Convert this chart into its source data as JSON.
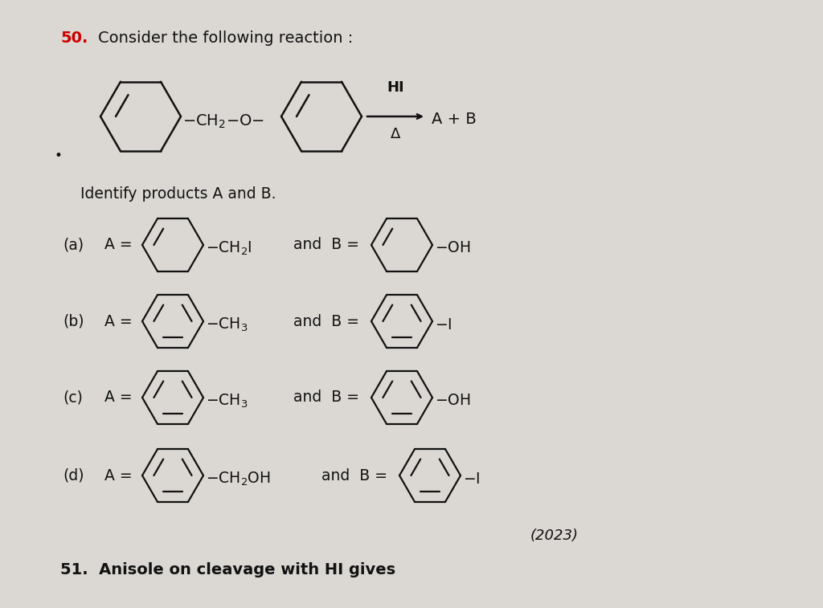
{
  "background_color": "#dbd8d3",
  "title_number": "50.",
  "title_text": "Consider the following reaction :",
  "identify_text": "Identify products A and B.",
  "bottom_text": "51.  Anisole on cleavage with HI gives",
  "year_text": "(2023)",
  "arrow_top": "HI",
  "arrow_bottom": "Δ",
  "arrow_result": "A + B",
  "font_color": "#111111",
  "ring_color": "#111111",
  "ring_linewidth": 1.6,
  "fig_w": 10.24,
  "fig_h": 7.57
}
